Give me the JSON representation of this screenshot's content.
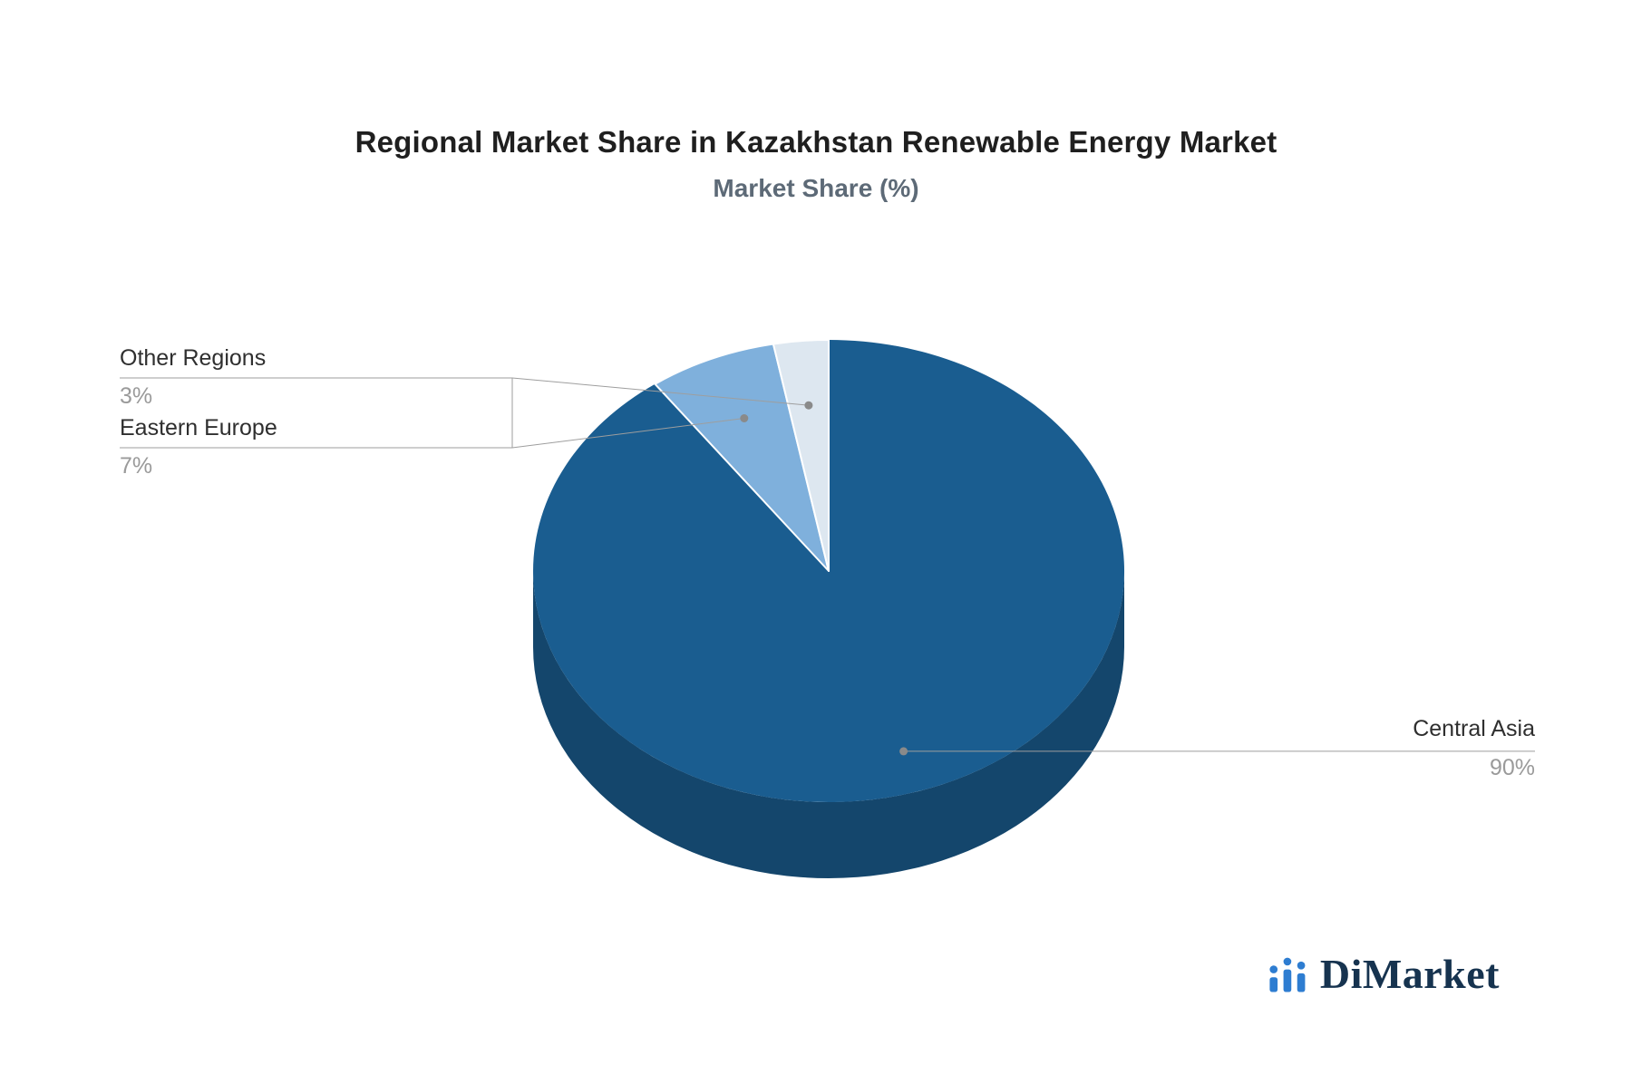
{
  "chart_data": {
    "type": "pie",
    "title": "Regional Market Share in Kazakhstan Renewable Energy Market",
    "subtitle": "Market Share (%)",
    "unit": "%",
    "start_angle_deg": -90,
    "direction": "clockwise",
    "three_d": true,
    "labels_style": "callout",
    "slices": [
      {
        "label": "Central Asia",
        "value": 90,
        "display": "90%",
        "color": "#1a5d90"
      },
      {
        "label": "Eastern Europe",
        "value": 7,
        "display": "7%",
        "color": "#7fb0dc"
      },
      {
        "label": "Other Regions",
        "value": 3,
        "display": "3%",
        "color": "#dde7f0"
      }
    ],
    "callout_style": {
      "line_color": "#9e9e9e",
      "dot_color": "#8a8a8a",
      "label_color": "#2f2f2f",
      "value_color": "#9a9a9a"
    }
  },
  "branding": {
    "logo_text": "DiMarket",
    "logo_icon": "bar-chart-icon",
    "logo_color": "#2e7dd1",
    "logo_text_color": "#16334f"
  }
}
